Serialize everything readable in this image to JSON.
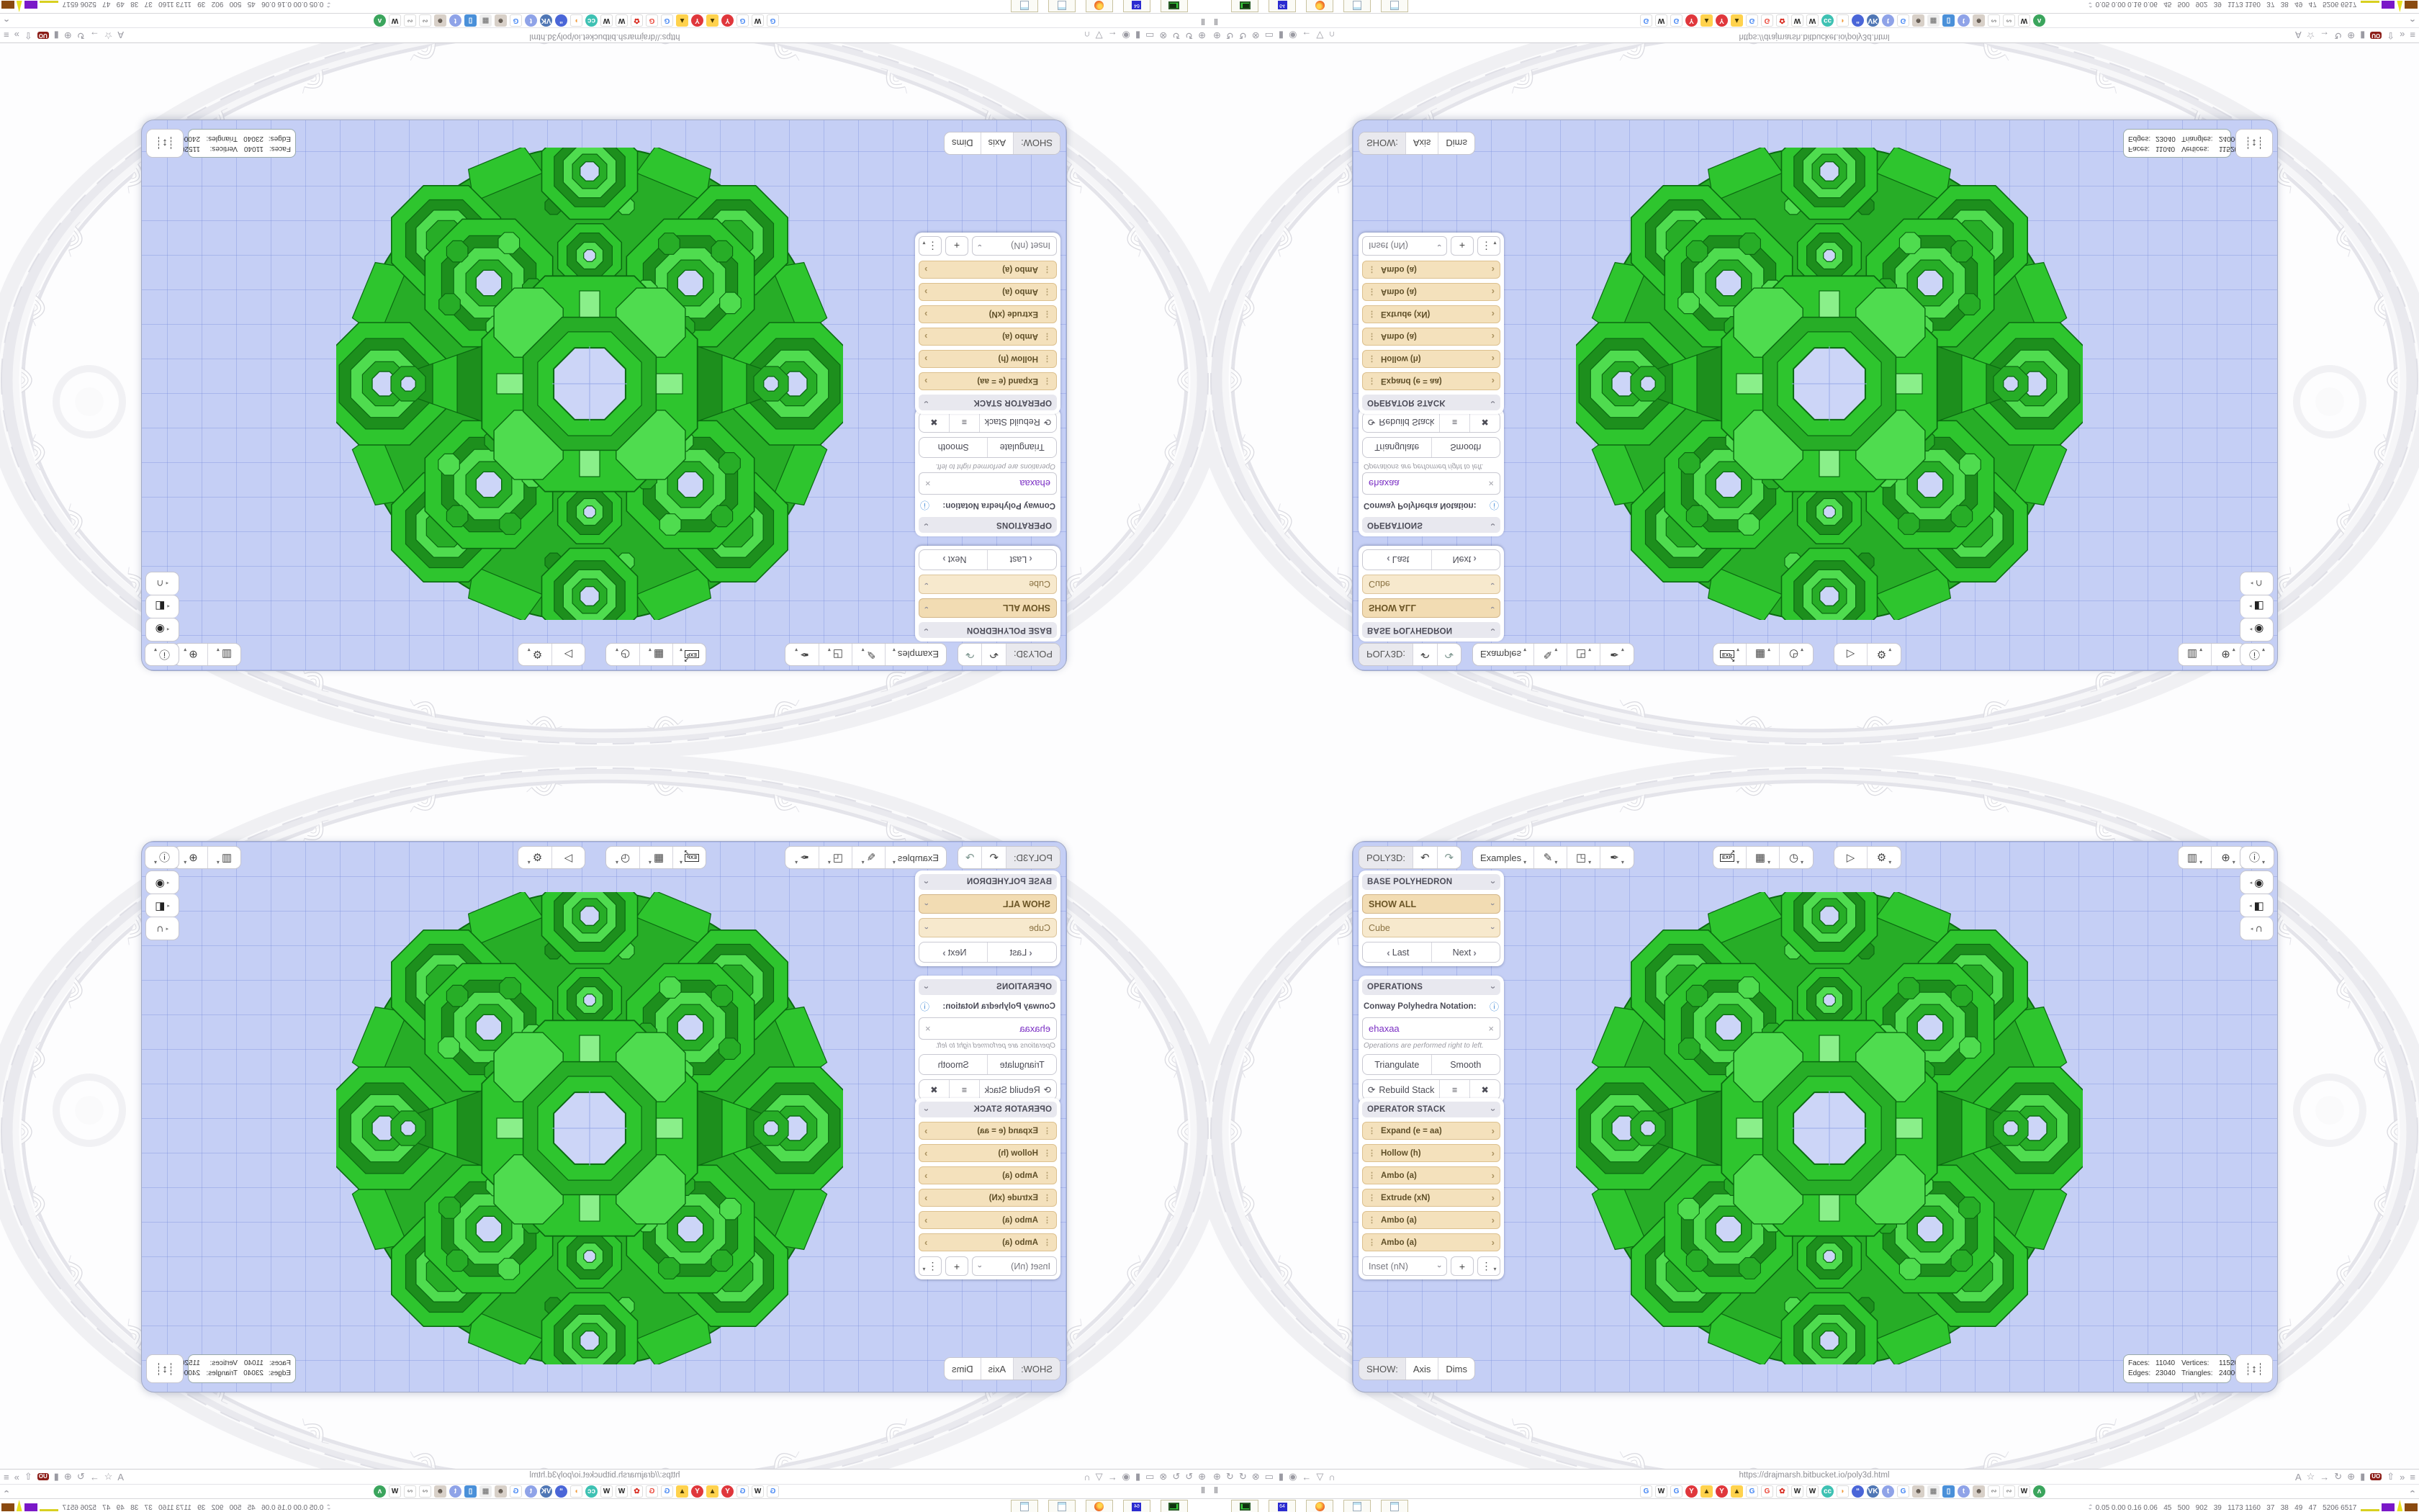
{
  "colors": {
    "viewport": "#c5cff5",
    "grid": "#7a8ddb",
    "accent_tan": "#f2dcb3",
    "green_main": "#2ec52e",
    "green_mid": "#27ad27",
    "green_dark": "#1d8f1d",
    "green_light": "#4fdc4f",
    "green_pale": "#8aef8a",
    "edge": "#0b6a11",
    "hole_blue": "#ccd5f7",
    "hole_line": "#9aabe8"
  },
  "app": {
    "toolbar": {
      "brand": "POLY3D:",
      "undo_icon": "↶",
      "redo_icon": "↷",
      "examples_label": "Examples",
      "caret": "▾",
      "tool_icons": [
        {
          "name": "edit-shape-icon",
          "glyph": "✎",
          "caret": true
        },
        {
          "name": "cube-view-icon",
          "glyph": "◳",
          "caret": true
        },
        {
          "name": "notation-edit-icon",
          "glyph": "✒",
          "caret": true
        },
        {
          "name": "export-icon",
          "glyph": "EXP",
          "caret": true,
          "badge": true
        },
        {
          "name": "calendar-icon",
          "glyph": "▦",
          "caret": true
        },
        {
          "name": "clock-icon",
          "glyph": "◷",
          "caret": true
        },
        {
          "name": "play-icon",
          "glyph": "▷",
          "caret": false
        },
        {
          "name": "settings-gear-icon",
          "glyph": "⚙",
          "caret": true
        }
      ],
      "right_icons": [
        {
          "name": "calendar-clock-icon",
          "glyph": "▥"
        },
        {
          "name": "globe-icon",
          "glyph": "⊕"
        }
      ],
      "info_icon": "ⓘ"
    },
    "view_buttons": [
      {
        "name": "eye-icon",
        "glyph": "◉"
      },
      {
        "name": "contrast-toggle-icon",
        "glyph": "◧"
      },
      {
        "name": "magnet-icon",
        "glyph": "∩"
      }
    ],
    "panels": {
      "base_polyhedron": {
        "title": "BASE POLYHEDRON",
        "show_all": "SHOW ALL",
        "base_value": "Cube",
        "last_label": "Last",
        "next_label": "Next",
        "prev_arrow": "‹",
        "next_arrow": "›"
      },
      "operations": {
        "title": "OPERATIONS",
        "notation_label": "Conway Polyhedra Notation:",
        "notation_value": "ehaxaa",
        "clear_icon": "×",
        "hint": "Operations are performed right to left.",
        "triangulate_label": "Triangulate",
        "smooth_label": "Smooth",
        "rebuild_icon": "⟳",
        "rebuild_label": "Rebuild Stack",
        "list_icon": "≡",
        "clear_stack_icon": "✖"
      },
      "operator_stack": {
        "title": "OPERATOR STACK",
        "drag_icon": "⋮",
        "item_chevron": "›",
        "items": [
          "Expand (e = aa)",
          "Hollow (h)",
          "Ambo (a)",
          "Extrude (xN)",
          "Ambo (a)",
          "Ambo (a)"
        ],
        "add_select_value": "Inset (nN)",
        "add_icon": "+",
        "kebab_icon": "⋮"
      }
    },
    "bottom_bar": {
      "show_label": "SHOW:",
      "axis_label": "Axis",
      "dims_label": "Dims",
      "stats": {
        "l1a": "Faces:",
        "l1b": "11040",
        "l1c": "Vertices:",
        "l1d": "11520",
        "l2a": "Edges:",
        "l2b": "23040",
        "l2c": "Triangles:",
        "l2d": "24000"
      },
      "fit_icon": "↕"
    }
  },
  "browser": {
    "url_hint": "https://drajmarsh.bitbucket.io/poly3d.html",
    "pause_icon": "‖",
    "collapse_icon": "›",
    "nav_left_icons": [
      {
        "name": "globe-icon",
        "glyph": "⊕"
      },
      {
        "name": "redo-icon",
        "glyph": "↻"
      },
      {
        "name": "redo-icon",
        "glyph": "↻"
      },
      {
        "name": "globe-off-icon",
        "glyph": "⊗"
      },
      {
        "name": "folder-icon",
        "glyph": "▭"
      },
      {
        "name": "trash-icon",
        "glyph": "▮"
      },
      {
        "name": "shield-icon",
        "glyph": "◉"
      },
      {
        "name": "back-arrow-icon",
        "glyph": "←"
      },
      {
        "name": "shield-outline-icon",
        "glyph": "▽"
      },
      {
        "name": "lock-icon",
        "glyph": "∩"
      }
    ],
    "nav_right_icons": [
      {
        "name": "translate-icon",
        "glyph": "A"
      },
      {
        "name": "star-icon",
        "glyph": "☆"
      },
      {
        "name": "forward-arrow-icon",
        "glyph": "→"
      },
      {
        "name": "refresh-icon",
        "glyph": "↻"
      },
      {
        "name": "globe-icon",
        "glyph": "⊕"
      },
      {
        "name": "trash-icon",
        "glyph": "▮"
      },
      {
        "name": "ublock-shield-icon",
        "glyph": "UO",
        "badge": true
      },
      {
        "name": "thumb-icon",
        "glyph": "⇧"
      },
      {
        "name": "overflow-icon",
        "glyph": "»"
      },
      {
        "name": "menu-icon",
        "glyph": "≡"
      }
    ],
    "bookmarks": [
      {
        "t": "G",
        "bg": "#ffffff",
        "fg": "#4285f4",
        "bd": "#dddddd"
      },
      {
        "t": "W",
        "bg": "#ffffff",
        "fg": "#222222",
        "bd": "#dddddd"
      },
      {
        "t": "G",
        "bg": "#ffffff",
        "fg": "#4285f4",
        "bd": "#dddddd"
      },
      {
        "t": "Y",
        "bg": "#e0373c",
        "fg": "#ffffff",
        "round": true
      },
      {
        "t": "▲",
        "bg": "#ffd24d",
        "fg": "#4a3b00"
      },
      {
        "t": "Y",
        "bg": "#e0373c",
        "fg": "#ffffff",
        "round": true
      },
      {
        "t": "▲",
        "bg": "#ffd24d",
        "fg": "#4a3b00"
      },
      {
        "t": "G",
        "bg": "#ffffff",
        "fg": "#4285f4",
        "bd": "#dddddd"
      },
      {
        "t": "G",
        "bg": "#ffffff",
        "fg": "#ea4335",
        "bd": "#dddddd"
      },
      {
        "t": "✿",
        "bg": "#ffffff",
        "fg": "#d93025",
        "bd": "#dddddd"
      },
      {
        "t": "W",
        "bg": "#ffffff",
        "fg": "#222222",
        "bd": "#dddddd"
      },
      {
        "t": "W",
        "bg": "#ffffff",
        "fg": "#222222",
        "bd": "#dddddd"
      },
      {
        "t": "cc",
        "bg": "#3ec1b3",
        "fg": "#ffffff",
        "round": true
      },
      {
        "t": "◗",
        "bg": "#ffffff",
        "fg": "#f29a38",
        "bd": "#dddddd"
      },
      {
        "t": "“",
        "bg": "#4a66d8",
        "fg": "#ffffff",
        "round": true
      },
      {
        "t": "VK",
        "bg": "#5077b5",
        "fg": "#ffffff",
        "round": true
      },
      {
        "t": "t",
        "bg": "#8fa3e8",
        "fg": "#ffffff",
        "round": true
      },
      {
        "t": "G",
        "bg": "#ffffff",
        "fg": "#4285f4",
        "bd": "#dddddd"
      },
      {
        "t": "☻",
        "bg": "#d8d0c8",
        "fg": "#5a5148"
      },
      {
        "t": "▦",
        "bg": "#eeeeee",
        "fg": "#888888"
      },
      {
        "t": "▯",
        "bg": "#4a90d9",
        "fg": "#ffffff"
      },
      {
        "t": "t",
        "bg": "#8fa3e8",
        "fg": "#ffffff",
        "round": true
      },
      {
        "t": "☻",
        "bg": "#d8d0c8",
        "fg": "#5a5148"
      },
      {
        "t": "∾",
        "bg": "#ffffff",
        "fg": "#999999",
        "bd": "#dddddd"
      },
      {
        "t": "∾",
        "bg": "#ffffff",
        "fg": "#999999",
        "bd": "#dddddd"
      },
      {
        "t": "W",
        "bg": "#ffffff",
        "fg": "#222222",
        "bd": "#dddddd"
      },
      {
        "t": "ʌ",
        "bg": "#3ba55d",
        "fg": "#ffffff",
        "round": true
      }
    ],
    "taskbar": {
      "launchers": [
        {
          "name": "hdd-launcher",
          "kind": "hdd"
        },
        {
          "name": "floppy64-launcher",
          "kind": "floppy",
          "label": "64"
        },
        {
          "name": "firefox-launcher",
          "kind": "firefox"
        },
        {
          "name": "notepad-launcher",
          "kind": "note"
        },
        {
          "name": "notepad-launcher",
          "kind": "note"
        }
      ],
      "monitor_values": "0.05 0.00 0.16 0.06   45   500   902   39   1173 1160   37   38   49   47   5206 6517",
      "monitor_graphs": [
        {
          "c": "#d8d020",
          "t": "line"
        },
        {
          "c": "#7a18c8",
          "t": "bars"
        },
        {
          "c": "#e8e020",
          "t": "spike"
        },
        {
          "c": "#8a4a10",
          "t": "bars"
        },
        {
          "c": "#2b5fb8",
          "t": "box"
        },
        {
          "c": "#8a4a10",
          "t": "boxtall"
        },
        {
          "c": "#28c028",
          "t": "line"
        },
        {
          "c": "#c01818",
          "t": "mount"
        }
      ]
    }
  }
}
